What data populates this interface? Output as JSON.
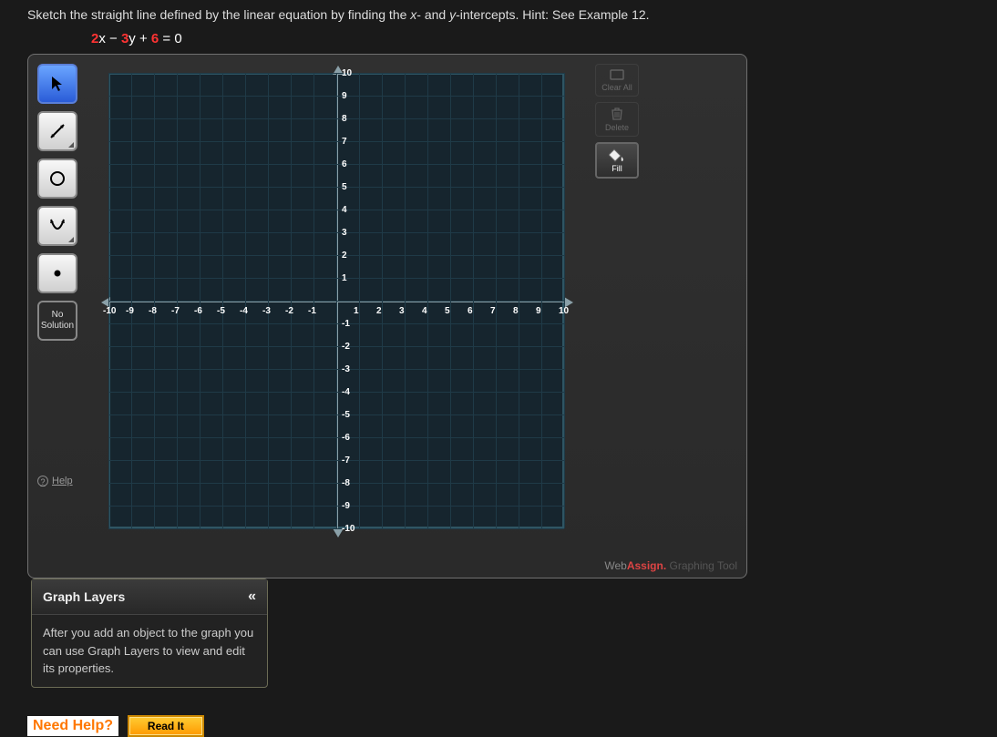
{
  "question": {
    "prefix": "Sketch the straight line defined by the linear equation by finding the ",
    "x_term": "x",
    "mid": "- and ",
    "y_term": "y",
    "suffix": "-intercepts. Hint: See Example 12."
  },
  "equation": {
    "coef1": "2",
    "var1": "x",
    "op1": " − ",
    "coef2": "3",
    "var2": "y",
    "op2": " + ",
    "const": "6",
    "eq": " = 0"
  },
  "toolbar": {
    "items": [
      {
        "name": "pointer-tool",
        "active": true,
        "icon": "cursor"
      },
      {
        "name": "line-tool",
        "active": false,
        "icon": "line",
        "corner": true
      },
      {
        "name": "circle-tool",
        "active": false,
        "icon": "circle"
      },
      {
        "name": "parabola-tool",
        "active": false,
        "icon": "parabola",
        "corner": true
      },
      {
        "name": "point-tool",
        "active": false,
        "icon": "dot"
      }
    ],
    "nosolution_label_l1": "No",
    "nosolution_label_l2": "Solution",
    "help_label": "Help"
  },
  "sidebuttons": {
    "clearall": "Clear All",
    "delete": "Delete",
    "fill": "Fill"
  },
  "grid": {
    "xmin": -10,
    "xmax": 10,
    "ymin": -10,
    "ymax": 10,
    "step": 1,
    "bg": "#16252e",
    "gridline": "#1f3a47",
    "axis": "#8aa0a8",
    "label_color": "#ffffff"
  },
  "brand": {
    "p1": "Web",
    "p2": "Assign.",
    "p3": " Graphing Tool"
  },
  "layers": {
    "title": "Graph Layers",
    "chevron": "«",
    "body": "After you add an object to the graph you can use Graph Layers to view and edit its properties."
  },
  "needhelp": {
    "label": "Need Help?",
    "readit": "Read It"
  }
}
